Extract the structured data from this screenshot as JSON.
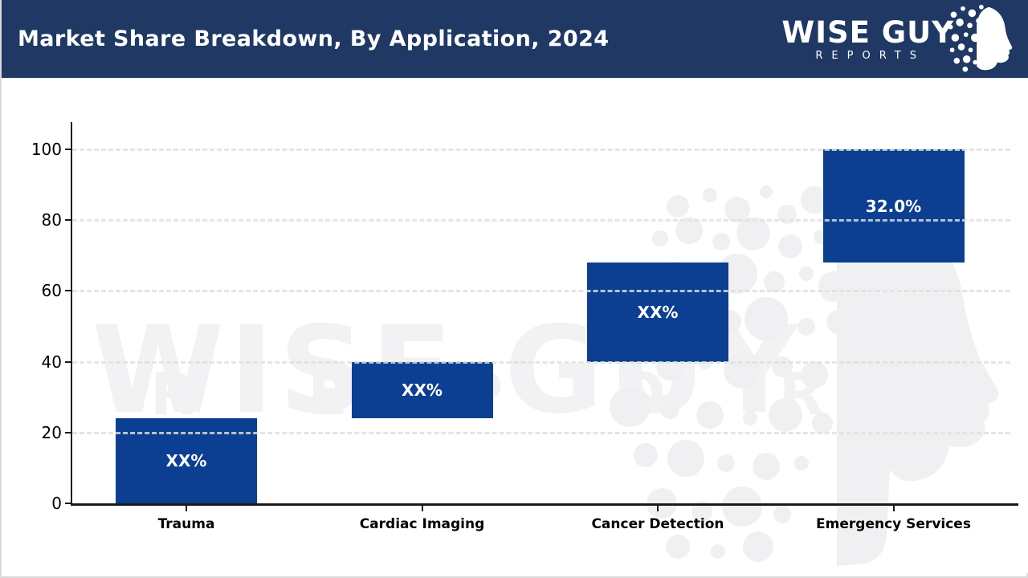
{
  "header": {
    "title": "Market Share Breakdown, By Application, 2024",
    "logo": {
      "line1": "WISE GUY",
      "line2": "REPORTS"
    }
  },
  "watermark": {
    "line1": "WISE GUY",
    "line2": "R E P O R T S"
  },
  "chart_data": {
    "type": "bar",
    "subtype": "waterfall",
    "title": "Market Share Breakdown, By Application, 2024",
    "categories": [
      "Trauma",
      "Cardiac Imaging",
      "Cancer Detection",
      "Emergency Services"
    ],
    "segments": [
      {
        "category": "Trauma",
        "start": 0,
        "end": 24,
        "value": 24,
        "label": "XX%"
      },
      {
        "category": "Cardiac Imaging",
        "start": 24,
        "end": 40,
        "value": 16,
        "label": "XX%"
      },
      {
        "category": "Cancer Detection",
        "start": 40,
        "end": 68,
        "value": 28,
        "label": "XX%"
      },
      {
        "category": "Emergency Services",
        "start": 68,
        "end": 100,
        "value": 32,
        "label": "32.0%"
      }
    ],
    "xlabel": "",
    "ylabel": "",
    "ylim": [
      0,
      100
    ],
    "y_ticks": [
      0,
      20,
      40,
      60,
      80,
      100
    ],
    "grid": "horizontal-dashed",
    "legend": "none",
    "bar_color": "#0c3f92",
    "bar_label_color": "#ffffff"
  },
  "colors": {
    "header_bg": "#1f3864",
    "bar": "#0c3f92",
    "grid": "#e0e0e0",
    "axis": "#1a1a1a",
    "watermark": "#f2f2f4",
    "page_border": "#d9d9d9"
  }
}
